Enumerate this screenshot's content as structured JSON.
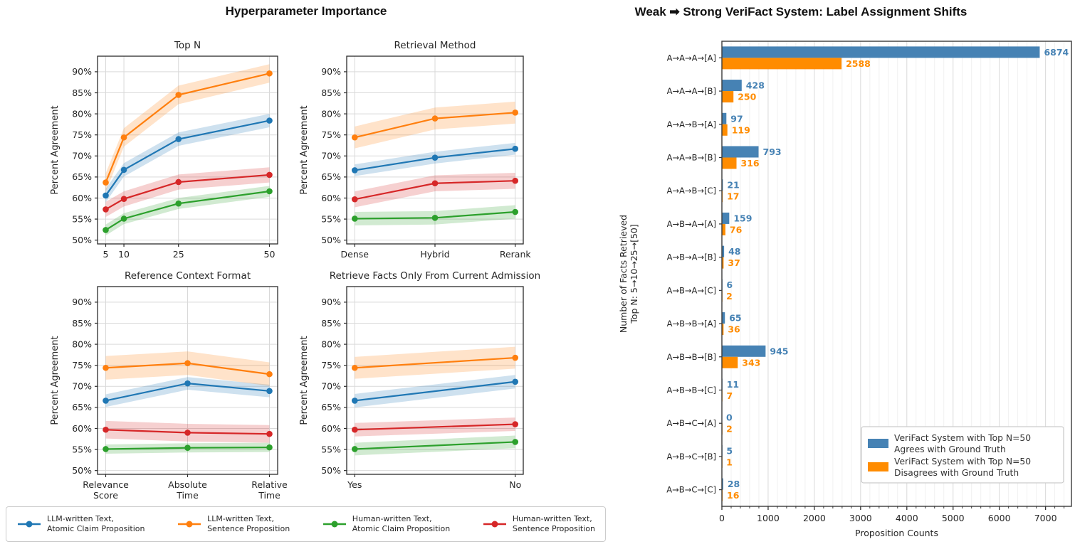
{
  "chart_data": {
    "left": {
      "type": "line",
      "title": "Hyperparameter Importance",
      "ylabel": "Percent Agreement",
      "ylim": [
        49.1,
        93.7
      ],
      "yticks": [
        50,
        55,
        60,
        65,
        70,
        75,
        80,
        85,
        90
      ],
      "ytick_suffix": "%",
      "grid": true,
      "series_meta": [
        {
          "name": "LLM-written Text, Atomic Claim Proposition",
          "color": "#1f77b4"
        },
        {
          "name": "LLM-written Text, Sentence Proposition",
          "color": "#ff7f0e"
        },
        {
          "name": "Human-written Text, Atomic Claim Proposition",
          "color": "#2ca02c"
        },
        {
          "name": "Human-written Text, Sentence Proposition",
          "color": "#d62728"
        }
      ],
      "subplots": [
        {
          "title": "Top N",
          "x_type": "numeric",
          "x": [
            5,
            10,
            25,
            50
          ],
          "xlim": [
            2.75,
            52.25
          ],
          "tick_labels": [
            "5",
            "10",
            "25",
            "50"
          ],
          "series": [
            {
              "values": [
                60.6,
                66.7,
                74.0,
                78.4
              ],
              "band": 1.6
            },
            {
              "values": [
                63.7,
                74.4,
                84.5,
                89.6
              ],
              "band": 2.2
            },
            {
              "values": [
                52.4,
                55.1,
                58.7,
                61.6
              ],
              "band": 1.3
            },
            {
              "values": [
                57.3,
                59.8,
                63.8,
                65.5
              ],
              "band": 1.8
            }
          ]
        },
        {
          "title": "Retrieval Method",
          "x_type": "categorical",
          "tick_labels": [
            "Dense",
            "Hybrid",
            "Rerank"
          ],
          "series": [
            {
              "values": [
                66.6,
                69.6,
                71.7
              ],
              "band": 1.4
            },
            {
              "values": [
                74.4,
                78.9,
                80.3
              ],
              "band": 2.6
            },
            {
              "values": [
                55.1,
                55.3,
                56.7
              ],
              "band": 1.6
            },
            {
              "values": [
                59.7,
                63.5,
                64.1
              ],
              "band": 1.9
            }
          ]
        },
        {
          "title": "Reference Context Format",
          "x_type": "categorical",
          "tick_labels": [
            [
              "Relevance",
              "Score"
            ],
            [
              "Absolute",
              "Time"
            ],
            [
              "Relative",
              "Time"
            ]
          ],
          "series": [
            {
              "values": [
                66.6,
                70.7,
                68.9
              ],
              "band": 1.5
            },
            {
              "values": [
                74.4,
                75.5,
                72.9
              ],
              "band": 2.8
            },
            {
              "values": [
                55.1,
                55.4,
                55.5
              ],
              "band": 1.1
            },
            {
              "values": [
                59.7,
                59.0,
                58.7
              ],
              "band": 2.1
            }
          ]
        },
        {
          "title": "Retrieve Facts Only From Current Admission",
          "x_type": "categorical",
          "tick_labels": [
            "Yes",
            "No"
          ],
          "series": [
            {
              "values": [
                66.6,
                71.1
              ],
              "band": 1.6
            },
            {
              "values": [
                74.4,
                76.8
              ],
              "band": 2.6
            },
            {
              "values": [
                55.1,
                56.8
              ],
              "band": 1.5
            },
            {
              "values": [
                59.7,
                61.0
              ],
              "band": 1.6
            }
          ]
        }
      ],
      "legend": [
        {
          "line1": "LLM-written Text,",
          "line2": "Atomic Claim Proposition",
          "color": "#1f77b4"
        },
        {
          "line1": "LLM-written Text,",
          "line2": "Sentence Proposition",
          "color": "#ff7f0e"
        },
        {
          "line1": "Human-written Text,",
          "line2": "Atomic Claim Proposition",
          "color": "#2ca02c"
        },
        {
          "line1": "Human-written Text,",
          "line2": "Sentence Proposition",
          "color": "#d62728"
        }
      ]
    },
    "right": {
      "type": "bar",
      "orientation": "horizontal",
      "title": "Weak ➡ Strong VeriFact System: Label Assignment Shifts",
      "xlabel": "Proposition Counts",
      "ylabel_line1": "Number of Facts Retrieved",
      "ylabel_line2": "Top N: 5→10→25→[50]",
      "xlim": [
        0,
        7560
      ],
      "xticks": [
        0,
        1000,
        2000,
        3000,
        4000,
        5000,
        6000,
        7000
      ],
      "minor_tick_step": 200,
      "grid": true,
      "categories": [
        "A→A→A→[A]",
        "A→A→A→[B]",
        "A→A→B→[A]",
        "A→A→B→[B]",
        "A→A→B→[C]",
        "A→B→A→[A]",
        "A→B→A→[B]",
        "A→B→A→[C]",
        "A→B→B→[A]",
        "A→B→B→[B]",
        "A→B→B→[C]",
        "A→B→C→[A]",
        "A→B→C→[B]",
        "A→B→C→[C]"
      ],
      "series": [
        {
          "name_line1": "VeriFact System with Top N=50",
          "name_line2": "Agrees with Ground Truth",
          "color": "#4682b4",
          "values": [
            6874,
            428,
            97,
            793,
            21,
            159,
            48,
            6,
            65,
            945,
            11,
            0,
            5,
            28
          ]
        },
        {
          "name_line1": "VeriFact System with Top N=50",
          "name_line2": "Disagrees with Ground Truth",
          "color": "#ff8c00",
          "values": [
            2588,
            250,
            119,
            316,
            17,
            76,
            37,
            2,
            36,
            343,
            7,
            2,
            1,
            16
          ]
        }
      ]
    }
  }
}
